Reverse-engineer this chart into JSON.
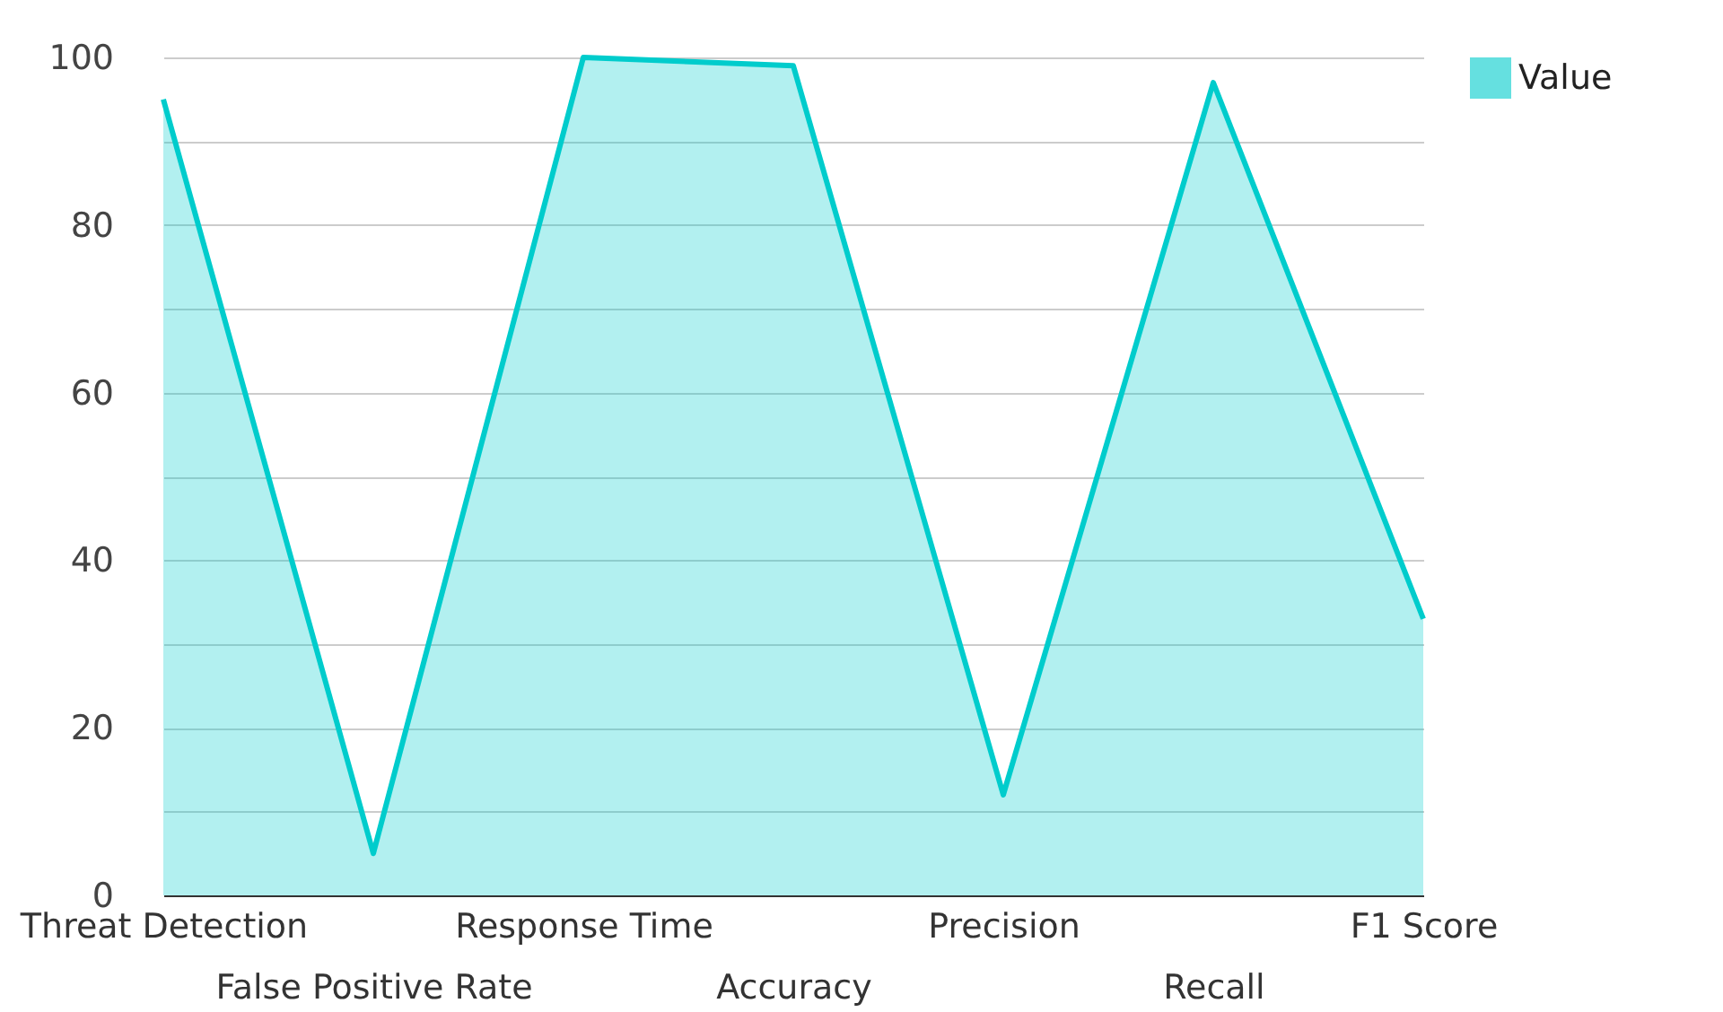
{
  "chart_data": {
    "type": "area",
    "categories": [
      "Threat Detection",
      "False Positive Rate",
      "Response Time",
      "Accuracy",
      "Precision",
      "Recall",
      "F1 Score"
    ],
    "series": [
      {
        "name": "Value",
        "color": "#00cccc",
        "values": [
          95,
          5,
          100,
          99,
          12,
          97,
          33
        ]
      }
    ],
    "ylim": [
      0,
      100
    ],
    "yticks": [
      0,
      {
        "value": 10,
        "label": null
      },
      20,
      {
        "value": 30,
        "label": null
      },
      40,
      {
        "value": 50,
        "label": null
      },
      60,
      {
        "value": 70,
        "label": null
      },
      80,
      {
        "value": 90,
        "label": null
      },
      100
    ],
    "grid": "y",
    "legend": "top right"
  }
}
